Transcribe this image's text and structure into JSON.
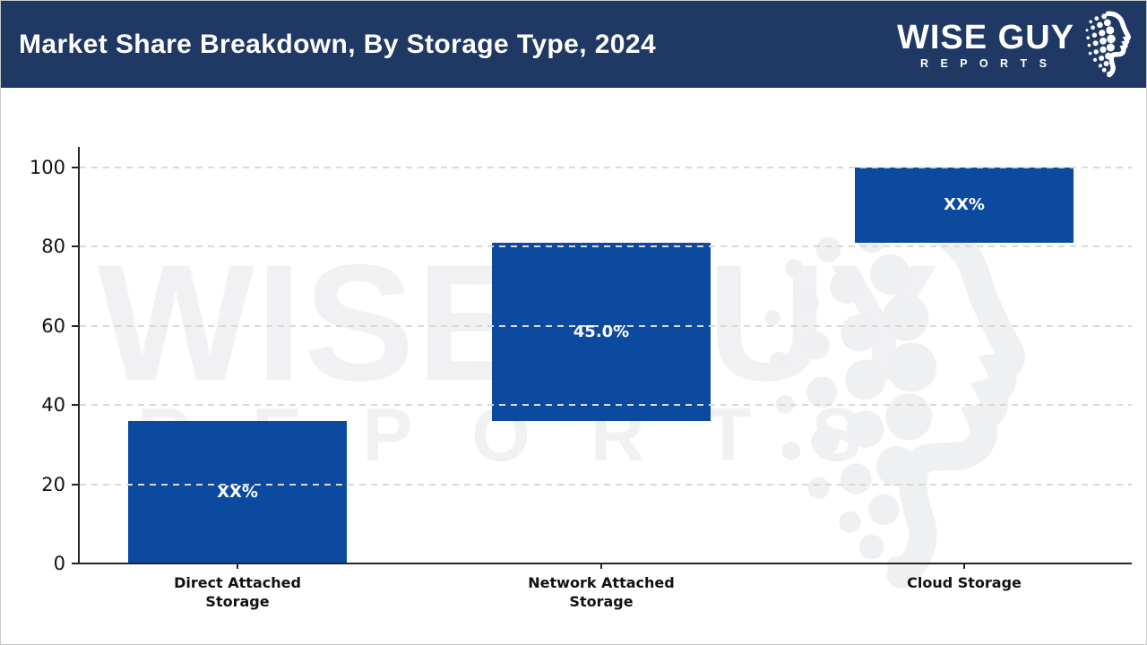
{
  "header": {
    "title": "Market Share Breakdown, By Storage Type, 2024",
    "background_color": "#1f3864",
    "logo": {
      "wordmark": "WISE GUY",
      "subtext": "R E P O R T S"
    }
  },
  "watermark": {
    "wordmark": "WISE GUY",
    "subtext": "R E P O R T S"
  },
  "chart_data": {
    "type": "bar",
    "subtype": "floating-waterfall",
    "title": "Market Share Breakdown, By Storage Type, 2024",
    "categories": [
      "Direct Attached Storage",
      "Network Attached Storage",
      "Cloud Storage"
    ],
    "category_label_lines": [
      [
        "Direct Attached",
        "Storage"
      ],
      [
        "Network Attached",
        "Storage"
      ],
      [
        "Cloud Storage"
      ]
    ],
    "series": [
      {
        "name": "Market share (%)",
        "segments": [
          {
            "category": "Direct Attached Storage",
            "start": 0,
            "end": 36,
            "label": "XX%"
          },
          {
            "category": "Network Attached Storage",
            "start": 36,
            "end": 81,
            "label": "45.0%",
            "value": 45.0
          },
          {
            "category": "Cloud Storage",
            "start": 81,
            "end": 100,
            "label": "XX%"
          }
        ]
      }
    ],
    "yticks": [
      0,
      20,
      40,
      60,
      80,
      100
    ],
    "ylim": [
      0,
      105
    ],
    "grid": {
      "horizontal": true,
      "style": "dashed",
      "color": "#d9d9d9",
      "drawn_above_bars": true
    },
    "bar_color": "#0b4a9e",
    "bar_label_color": "#ffffff",
    "axis_color": "#262626",
    "legend": "none"
  }
}
